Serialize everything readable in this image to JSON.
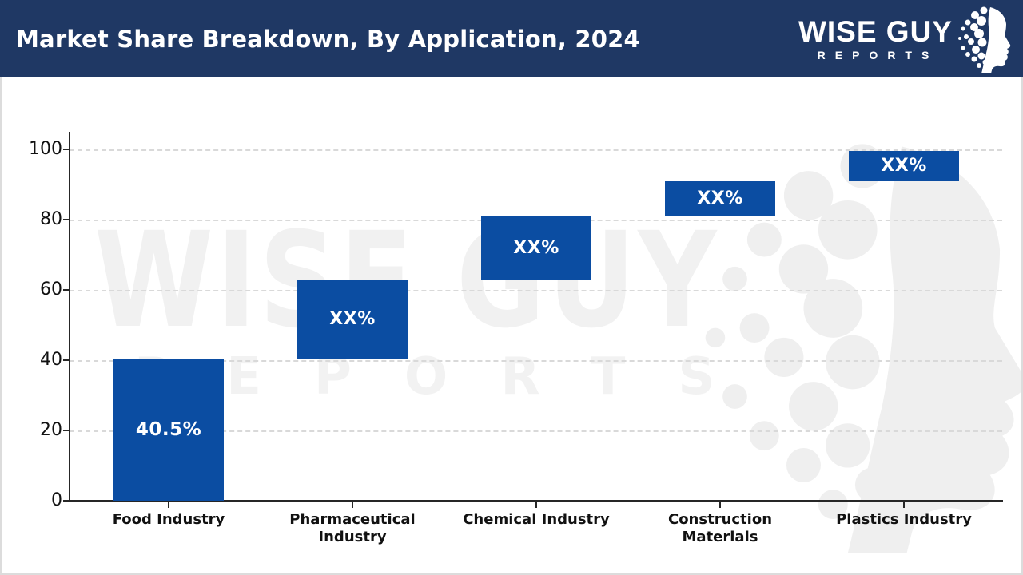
{
  "header": {
    "title": "Market Share Breakdown, By Application, 2024",
    "bg_color": "#1F3864",
    "logo": {
      "line1": "WISE GUY",
      "line2": "REPORTS"
    }
  },
  "watermark": {
    "line1": "WISE GUY",
    "line2": "REPORTS"
  },
  "chart_data": {
    "type": "bar",
    "subtype": "floating-waterfall",
    "title": "Market Share Breakdown, By Application, 2024",
    "categories": [
      "Food Industry",
      "Pharmaceutical Industry",
      "Chemical Industry",
      "Construction Materials",
      "Plastics Industry"
    ],
    "segments": [
      {
        "label": "Food Industry",
        "start": 0,
        "end": 40.5,
        "value_label": "40.5%"
      },
      {
        "label": "Pharmaceutical Industry",
        "start": 40.5,
        "end": 63,
        "value_label": "XX%"
      },
      {
        "label": "Chemical Industry",
        "start": 63,
        "end": 81,
        "value_label": "XX%"
      },
      {
        "label": "Construction Materials",
        "start": 81,
        "end": 91,
        "value_label": "XX%"
      },
      {
        "label": "Plastics Industry",
        "start": 91,
        "end": 99.5,
        "value_label": "XX%"
      }
    ],
    "y_ticks": [
      0,
      20,
      40,
      60,
      80,
      100
    ],
    "ylim": [
      0,
      105
    ],
    "xlabel": "",
    "ylabel": "",
    "bar_color": "#0B4DA2",
    "grid": "horizontal-dashed",
    "legend": "none"
  }
}
